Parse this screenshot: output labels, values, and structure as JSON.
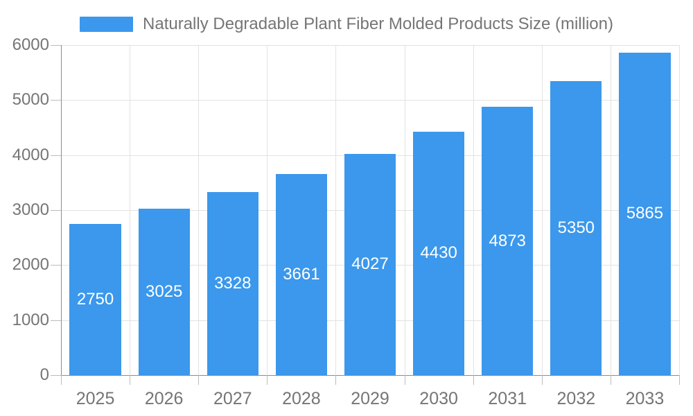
{
  "chart_data": {
    "type": "bar",
    "title": "Naturally Degradable Plant Fiber Molded Products Size (million)",
    "legend": [
      "Naturally Degradable Plant Fiber Molded Products Size (million)"
    ],
    "legend_position": "top-center",
    "categories": [
      "2025",
      "2026",
      "2027",
      "2028",
      "2029",
      "2030",
      "2031",
      "2032",
      "2033"
    ],
    "values": [
      2750,
      3025,
      3328,
      3661,
      4027,
      4430,
      4873,
      5350,
      5865
    ],
    "value_labels_shown": true,
    "value_label_position": "inside-center",
    "xlabel": "",
    "ylabel": "",
    "ylim": [
      0,
      6000
    ],
    "ytick_step": 1000,
    "yticks": [
      0,
      1000,
      2000,
      3000,
      4000,
      5000,
      6000
    ],
    "grid": true
  },
  "colors": {
    "bar": "#3b98ec",
    "value_label_text": "#ffffff",
    "axis_text": "#757575",
    "legend_text": "#757575",
    "gridline": "#e2e2e2",
    "axis_line": "#8c8c8c",
    "tick_line": "#bcbcbc",
    "background": "#ffffff"
  }
}
